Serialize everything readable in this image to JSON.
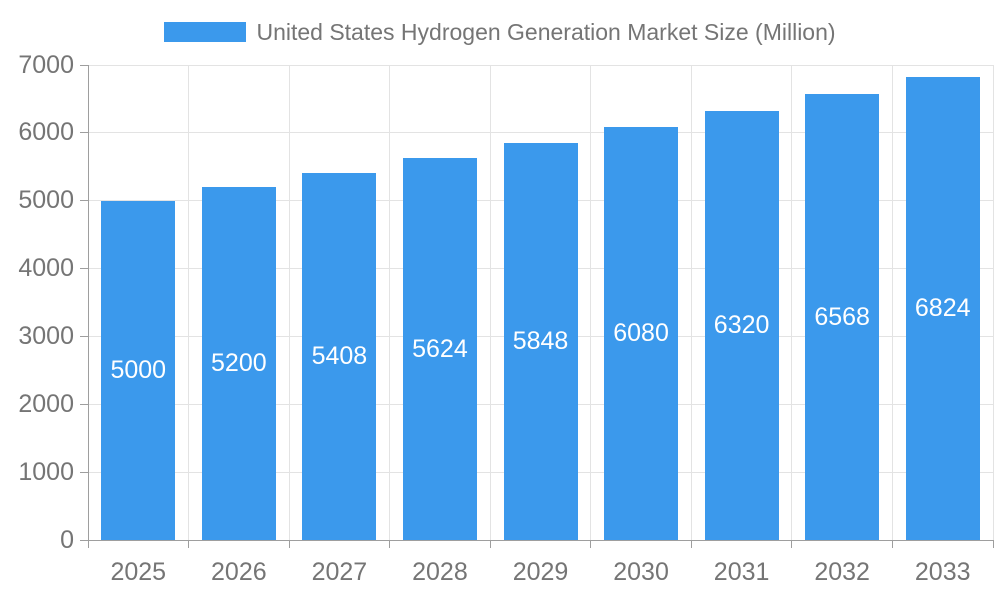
{
  "legend": {
    "label": "United States Hydrogen Generation Market Size (Million)",
    "swatch_color": "#3B99EC"
  },
  "chart_data": {
    "type": "bar",
    "title": "United States Hydrogen Generation Market Size (Million)",
    "series_name": "United States Hydrogen Generation Market Size (Million)",
    "categories": [
      "2025",
      "2026",
      "2027",
      "2028",
      "2029",
      "2030",
      "2031",
      "2032",
      "2033"
    ],
    "values": [
      5000,
      5200,
      5408,
      5624,
      5848,
      6080,
      6320,
      6568,
      6824
    ],
    "xlabel": "",
    "ylabel": "",
    "ylim": [
      0,
      7000
    ],
    "ytick_step": 1000,
    "ytick_labels": [
      "0",
      "1000",
      "2000",
      "3000",
      "4000",
      "5000",
      "6000",
      "7000"
    ],
    "grid": true,
    "legend_position": "top-center",
    "bar_color": "#3B99EC",
    "bar_label_color": "#FFFFFF",
    "axis_text_color": "#757575",
    "grid_color": "#E3E3E3",
    "axis_line_color": "#9E9E9E",
    "background_color": "#FFFFFF"
  }
}
